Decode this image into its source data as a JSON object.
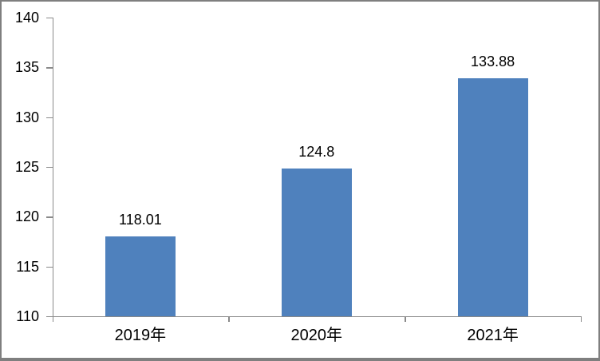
{
  "chart_data": {
    "type": "bar",
    "title": "",
    "xlabel": "",
    "ylabel": "",
    "categories": [
      "2019年",
      "2020年",
      "2021年"
    ],
    "values": [
      118.01,
      124.8,
      133.88
    ],
    "value_labels": [
      "118.01",
      "124.8",
      "133.88"
    ],
    "ylim": [
      110,
      140
    ],
    "ytick_step": 5,
    "yticks": [
      110,
      115,
      120,
      125,
      130,
      135,
      140
    ],
    "grid": false,
    "legend": "none",
    "colors": {
      "bar": "#4F81BD",
      "axis": "#8A8A8A",
      "text": "#000000",
      "frame": "#7F7F7F",
      "background": "#FFFFFF"
    }
  }
}
